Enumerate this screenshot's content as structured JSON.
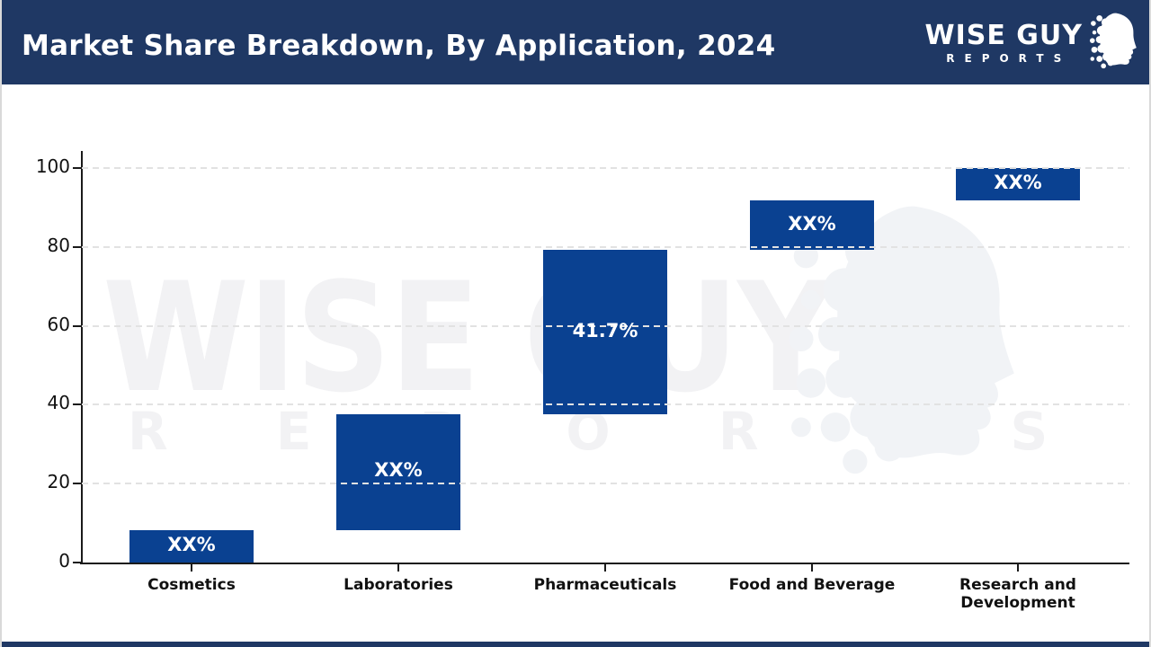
{
  "header": {
    "title": "Market Share Breakdown, By Application, 2024",
    "bg_color": "#1f3864",
    "logo_line1": "WISE GUY",
    "logo_line2": "REPORTS"
  },
  "watermark": {
    "line1": "WISE GUY",
    "line2": "R E P O R T S"
  },
  "chart_data": {
    "type": "bar",
    "variant": "waterfall",
    "title": "Market Share Breakdown, By Application, 2024",
    "categories": [
      "Cosmetics",
      "Laboratories",
      "Pharmaceuticals",
      "Food and Beverage",
      "Research and Development"
    ],
    "starts": [
      0,
      8.3,
      37.5,
      79.2,
      91.7
    ],
    "values": [
      8.3,
      29.2,
      41.7,
      12.5,
      8.3
    ],
    "labels": [
      "XX%",
      "XX%",
      "41.7%",
      "XX%",
      "XX%"
    ],
    "xlabel": "",
    "ylabel": "",
    "ylim": [
      0,
      100
    ],
    "yticks": [
      0,
      20,
      40,
      60,
      80,
      100
    ],
    "grid": {
      "axis": "y",
      "style": "dashed",
      "color": "#e2e2e2"
    },
    "legend": "none",
    "colors": {
      "bar": "#0a4191",
      "bar_label": "#ffffff",
      "axis": "#1a1a1a"
    }
  }
}
